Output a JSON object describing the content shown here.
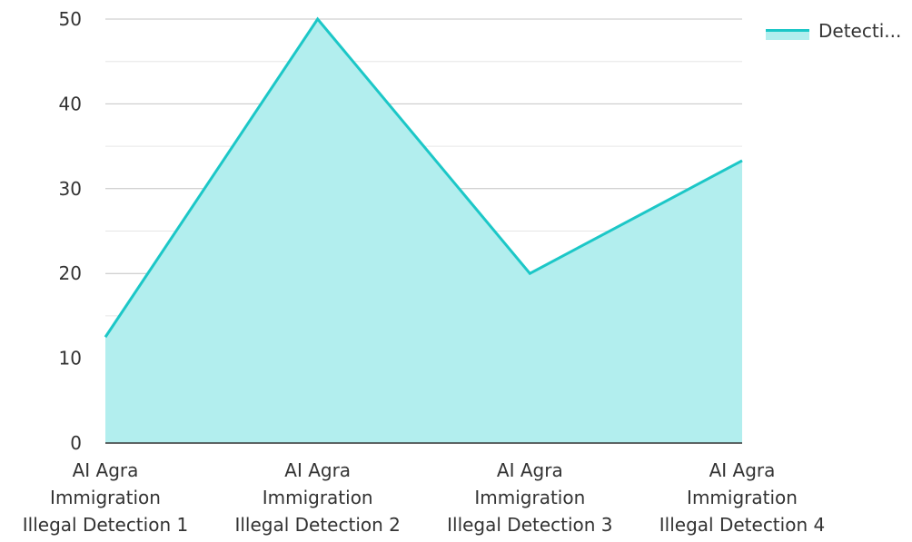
{
  "chart_data": {
    "type": "area",
    "categories": [
      [
        "AI Agra",
        "Immigration",
        "Illegal Detection 1"
      ],
      [
        "AI Agra",
        "Immigration",
        "Illegal Detection 2"
      ],
      [
        "AI Agra",
        "Immigration",
        "Illegal Detection 3"
      ],
      [
        "AI Agra",
        "Immigration",
        "Illegal Detection 4"
      ]
    ],
    "series": [
      {
        "name": "Detecti...",
        "values": [
          12.5,
          50,
          20,
          33.3
        ]
      }
    ],
    "ylim": [
      0,
      50
    ],
    "yticks": [
      0,
      10,
      20,
      30,
      40,
      50
    ],
    "ytick_labels": [
      "0",
      "10",
      "20",
      "30",
      "40",
      "50"
    ],
    "grid": true,
    "legend": "top-right",
    "colors": {
      "line": "#1cc7c7",
      "fill": "#b2eeee",
      "grid_major": "#c4c4c4",
      "grid_minor": "#e6e6e6",
      "axis": "#333333"
    }
  }
}
